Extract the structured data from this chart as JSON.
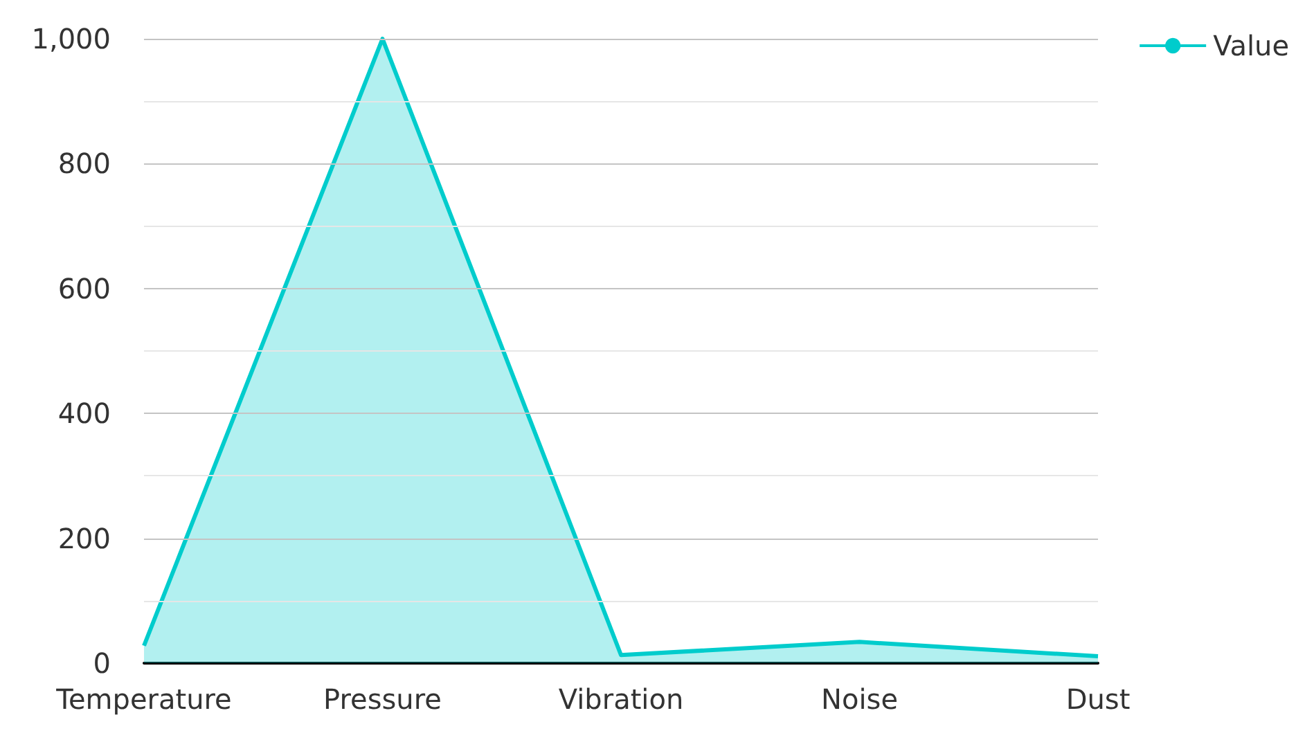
{
  "chart_data": {
    "type": "area",
    "categories": [
      "Temperature",
      "Pressure",
      "Vibration",
      "Noise",
      "Dust"
    ],
    "series": [
      {
        "name": "Value",
        "color": "#00cccc",
        "values": [
          28,
          1000,
          13,
          34,
          11
        ]
      }
    ],
    "ylim": [
      0,
      1000
    ],
    "yticks": [
      0,
      {
        "value": 100,
        "label": null
      },
      200,
      {
        "value": 300,
        "label": null
      },
      400,
      {
        "value": 500,
        "label": null
      },
      600,
      {
        "value": 700,
        "label": null
      },
      800,
      {
        "value": 900,
        "label": null
      },
      {
        "value": 1000,
        "label": "1,000"
      }
    ],
    "grid": "y",
    "legend": "top right",
    "marker": "none",
    "line_style": "solid"
  }
}
